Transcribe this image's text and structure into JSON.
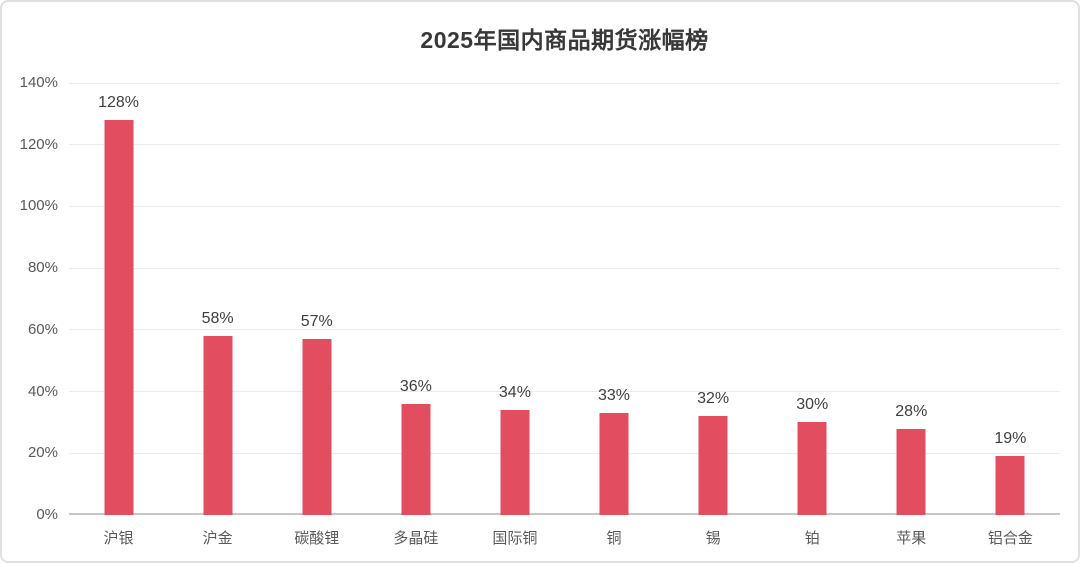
{
  "chart_data": {
    "type": "bar",
    "title": "2025年国内商品期货涨幅榜",
    "categories": [
      "沪银",
      "沪金",
      "碳酸锂",
      "多晶硅",
      "国际铜",
      "铜",
      "锡",
      "铂",
      "苹果",
      "铝合金"
    ],
    "values": [
      128,
      58,
      57,
      36,
      34,
      33,
      32,
      30,
      28,
      19
    ],
    "data_labels": [
      "128%",
      "58%",
      "57%",
      "36%",
      "34%",
      "33%",
      "32%",
      "30%",
      "28%",
      "19%"
    ],
    "xlabel": "",
    "ylabel": "",
    "ylim": [
      0,
      140
    ],
    "ytick_step": 20,
    "ytick_labels": [
      "0%",
      "20%",
      "40%",
      "60%",
      "80%",
      "100%",
      "120%",
      "140%"
    ],
    "grid": true,
    "legend": false,
    "colors": {
      "bar": "#e24d60",
      "gridline": "#ebebeb",
      "axis_line": "#c6c6c6",
      "title_text": "#383838",
      "tick_text": "#595959",
      "data_label_text": "#3f3f3f",
      "frame_border": "#e0e0e0",
      "background": "#ffffff"
    }
  }
}
